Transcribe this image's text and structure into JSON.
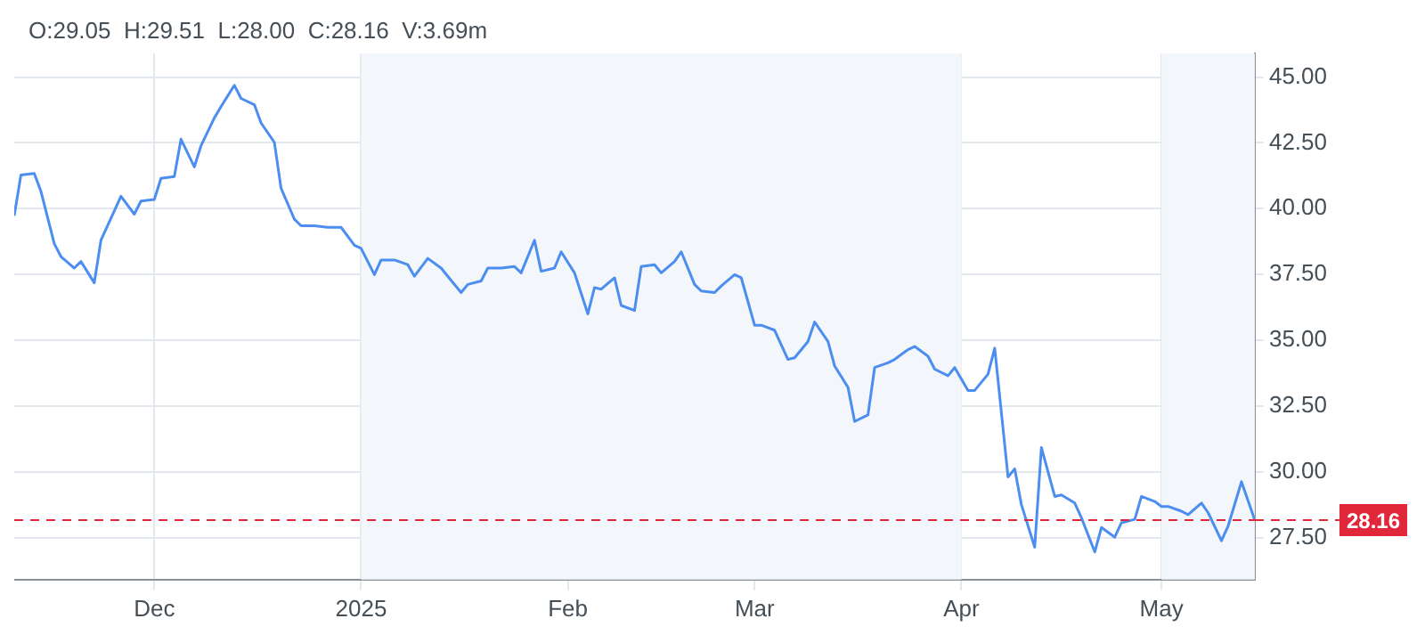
{
  "chart_data": {
    "type": "line",
    "annotations": [
      "O:29.05  H:29.51  L:28.00  C:28.16  V:3.69m"
    ],
    "x": [
      "2024-11-10",
      "2024-11-11",
      "2024-11-13",
      "2024-11-14",
      "2024-11-16",
      "2024-11-17",
      "2024-11-19",
      "2024-11-20",
      "2024-11-22",
      "2024-11-23",
      "2024-11-26",
      "2024-11-28",
      "2024-11-29",
      "2024-12-01",
      "2024-12-02",
      "2024-12-04",
      "2024-12-05",
      "2024-12-07",
      "2024-12-08",
      "2024-12-10",
      "2024-12-11",
      "2024-12-13",
      "2024-12-14",
      "2024-12-16",
      "2024-12-17",
      "2024-12-19",
      "2024-12-20",
      "2024-12-22",
      "2024-12-23",
      "2024-12-25",
      "2024-12-27",
      "2024-12-29",
      "2024-12-31",
      "2025-01-01",
      "2025-01-03",
      "2025-01-04",
      "2025-01-06",
      "2025-01-08",
      "2025-01-09",
      "2025-01-11",
      "2025-01-13",
      "2025-01-14",
      "2025-01-16",
      "2025-01-17",
      "2025-01-19",
      "2025-01-20",
      "2025-01-22",
      "2025-01-24",
      "2025-01-25",
      "2025-01-27",
      "2025-01-28",
      "2025-01-30",
      "2025-01-31",
      "2025-02-02",
      "2025-02-04",
      "2025-02-05",
      "2025-02-06",
      "2025-02-08",
      "2025-02-09",
      "2025-02-11",
      "2025-02-12",
      "2025-02-14",
      "2025-02-15",
      "2025-02-17",
      "2025-02-18",
      "2025-02-20",
      "2025-02-21",
      "2025-02-23",
      "2025-02-24",
      "2025-02-26",
      "2025-02-27",
      "2025-03-01",
      "2025-03-02",
      "2025-03-04",
      "2025-03-06",
      "2025-03-07",
      "2025-03-09",
      "2025-03-10",
      "2025-03-12",
      "2025-03-13",
      "2025-03-15",
      "2025-03-16",
      "2025-03-18",
      "2025-03-19",
      "2025-03-21",
      "2025-03-22",
      "2025-03-24",
      "2025-03-25",
      "2025-03-27",
      "2025-03-28",
      "2025-03-30",
      "2025-03-31",
      "2025-04-02",
      "2025-04-03",
      "2025-04-05",
      "2025-04-06",
      "2025-04-08",
      "2025-04-09",
      "2025-04-10",
      "2025-04-12",
      "2025-04-13",
      "2025-04-15",
      "2025-04-16",
      "2025-04-18",
      "2025-04-19",
      "2025-04-21",
      "2025-04-22",
      "2025-04-24",
      "2025-04-25",
      "2025-04-27",
      "2025-04-28",
      "2025-04-30",
      "2025-05-01",
      "2025-05-02",
      "2025-05-04",
      "2025-05-05",
      "2025-05-07",
      "2025-05-08",
      "2025-05-10",
      "2025-05-11",
      "2025-05-13",
      "2025-05-15"
    ],
    "series": [
      {
        "color": "#4c8ef0",
        "values": [
          39.73,
          41.28,
          41.34,
          40.66,
          38.67,
          38.18,
          37.74,
          37.99,
          37.18,
          38.8,
          40.47,
          39.79,
          40.29,
          40.35,
          41.15,
          41.22,
          42.64,
          41.59,
          42.39,
          43.45,
          43.88,
          44.69,
          44.19,
          43.95,
          43.26,
          42.52,
          40.78,
          39.6,
          39.35,
          39.35,
          39.29,
          39.29,
          38.61,
          38.49,
          37.49,
          38.05,
          38.05,
          37.87,
          37.43,
          38.11,
          37.74,
          37.43,
          36.81,
          37.12,
          37.25,
          37.74,
          37.74,
          37.8,
          37.56,
          38.8,
          37.62,
          37.74,
          38.36,
          37.56,
          36.0,
          37.0,
          36.94,
          37.37,
          36.32,
          36.13,
          37.8,
          37.87,
          37.56,
          37.99,
          38.36,
          37.12,
          36.87,
          36.81,
          37.06,
          37.49,
          37.37,
          35.57,
          35.57,
          35.38,
          34.27,
          34.33,
          34.95,
          35.69,
          34.95,
          34.02,
          33.21,
          31.91,
          32.16,
          33.96,
          34.14,
          34.27,
          34.64,
          34.76,
          34.39,
          33.9,
          33.65,
          33.96,
          33.09,
          33.09,
          33.71,
          34.7,
          29.8,
          30.11,
          28.75,
          27.13,
          30.92,
          29.06,
          29.12,
          28.81,
          28.25,
          26.95,
          27.88,
          27.51,
          28.06,
          28.19,
          29.06,
          28.87,
          28.68,
          28.68,
          28.5,
          28.37,
          28.81,
          28.44,
          27.38,
          27.94,
          29.62,
          28.16
        ]
      }
    ],
    "xlim": [
      "2024-11-10",
      "2025-05-15"
    ],
    "xticks": [
      {
        "value": "2024-12-01",
        "label": "Dec"
      },
      {
        "value": "2025-01-01",
        "label": "2025"
      },
      {
        "value": "2025-02-01",
        "label": "Feb"
      },
      {
        "value": "2025-03-01",
        "label": "Mar"
      },
      {
        "value": "2025-04-01",
        "label": "Apr"
      },
      {
        "value": "2025-05-01",
        "label": "May"
      }
    ],
    "ylim": [
      25.9,
      45.9
    ],
    "yticks": [
      {
        "value": 27.5,
        "label": "27.50"
      },
      {
        "value": 30,
        "label": "30.00"
      },
      {
        "value": 32.5,
        "label": "32.50"
      },
      {
        "value": 35,
        "label": "35.00"
      },
      {
        "value": 37.5,
        "label": "37.50"
      },
      {
        "value": 40,
        "label": "40.00"
      },
      {
        "value": 42.5,
        "label": "42.50"
      },
      {
        "value": 45,
        "label": "45.00"
      }
    ],
    "grid": true,
    "marker": "none",
    "line_style": "solid",
    "ref_lines": [
      {
        "axis": "y",
        "value": 28.16,
        "label": "28.16",
        "color": "#e0283a",
        "line_style": "dashed"
      }
    ],
    "bands": [
      {
        "axis": "x",
        "from": "2025-01-01",
        "to": "2025-04-01",
        "color": "#f3f6fa"
      },
      {
        "axis": "x",
        "from": "2025-05-01",
        "to": "2025-05-15",
        "color": "#f3f6fa"
      }
    ]
  }
}
